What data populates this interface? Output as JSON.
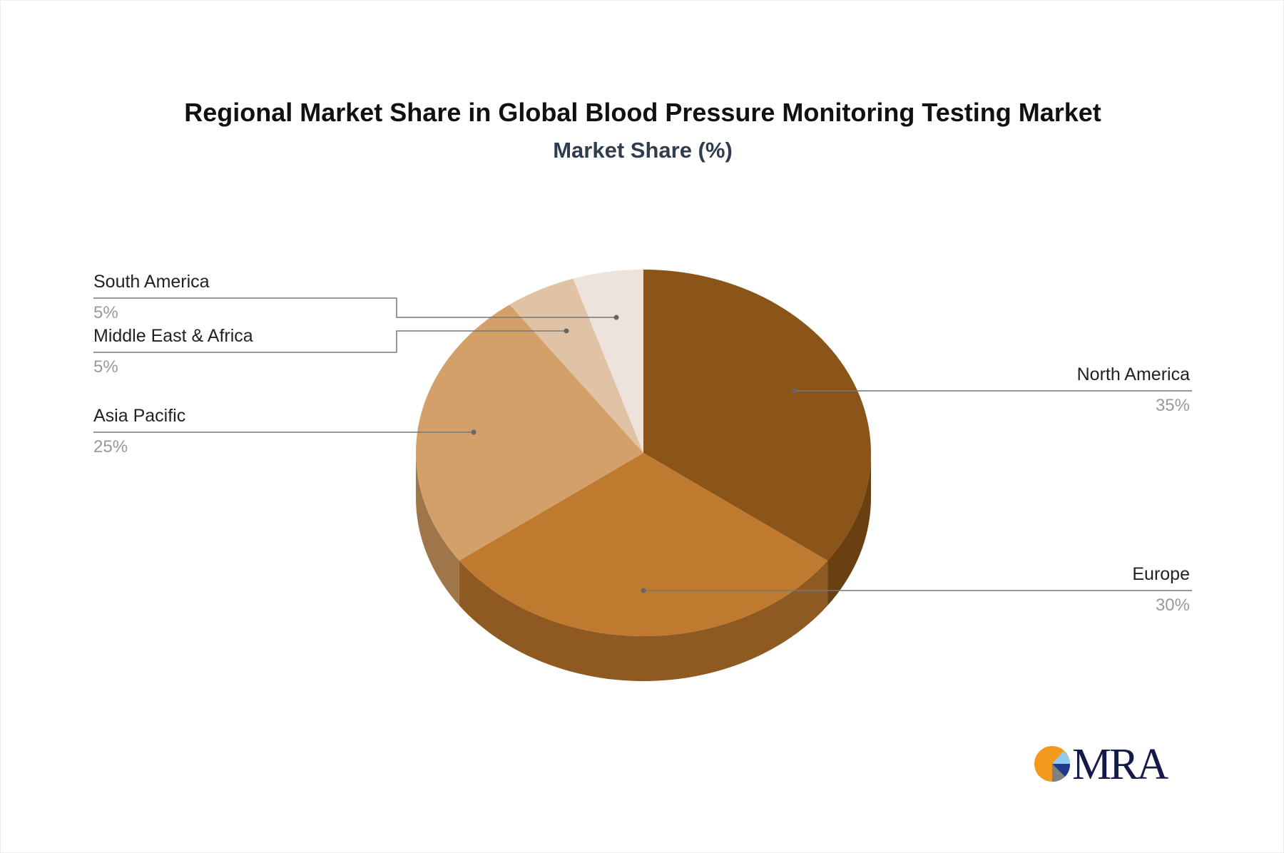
{
  "chart_data": {
    "type": "pie",
    "title": "Regional Market Share in Global Blood Pressure Monitoring Testing Market",
    "subtitle": "Market Share (%)",
    "style": "3d",
    "slices": [
      {
        "label": "North America",
        "value": 35,
        "value_label": "35%",
        "color": "#8B5519",
        "side_color": "#6A4013"
      },
      {
        "label": "Europe",
        "value": 30,
        "value_label": "30%",
        "color": "#BF7A2F",
        "side_color": "#8E5A22"
      },
      {
        "label": "Asia Pacific",
        "value": 25,
        "value_label": "25%",
        "color": "#D2A068",
        "side_color": "#9E764A"
      },
      {
        "label": "Middle East & Africa",
        "value": 5,
        "value_label": "5%",
        "color": "#DFC3A4",
        "side_color": "#B09A82"
      },
      {
        "label": "South America",
        "value": 5,
        "value_label": "5%",
        "color": "#EEE3DA",
        "side_color": "#C2B8B0"
      }
    ]
  },
  "logo": {
    "text": "MRA",
    "colors": [
      "#F39A1E",
      "#8FCBF0",
      "#1E3A8A",
      "#808080"
    ]
  }
}
